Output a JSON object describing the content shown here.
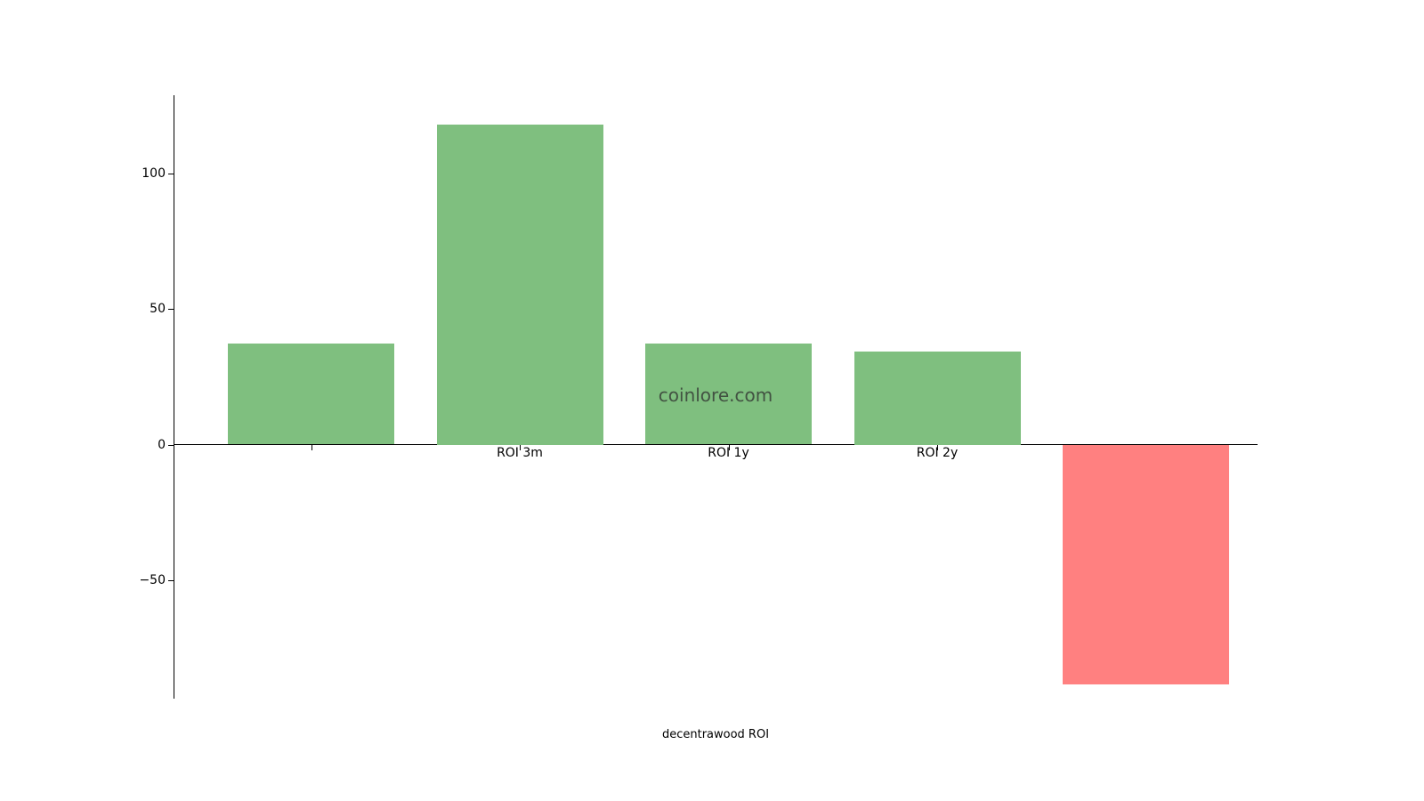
{
  "watermark": "coinlore.com",
  "colors": {
    "positive_bar": "#7fbf7f",
    "negative_bar": "#ff8080",
    "axis": "#000000",
    "watermark_text": "#2d2d2d"
  },
  "chart_data": {
    "type": "bar",
    "title": "decentrawood ROI",
    "xlabel": "",
    "ylabel": "",
    "categories": [
      "",
      "ROI 3m",
      "ROI 1y",
      "ROI 2y",
      ""
    ],
    "values": [
      37.3,
      118.3,
      37.3,
      34.5,
      -88.7
    ],
    "ylim": [
      -93.9,
      129.1
    ],
    "yticks": [
      {
        "label": "100",
        "value": 100
      },
      {
        "label": "50",
        "value": 50
      },
      {
        "label": "0",
        "value": 0
      },
      {
        "label": "−50",
        "value": -50
      }
    ],
    "grid": false,
    "legend": "none",
    "baseline": 0,
    "positive_color": "#7fbf7f",
    "negative_color": "#ff8080"
  }
}
